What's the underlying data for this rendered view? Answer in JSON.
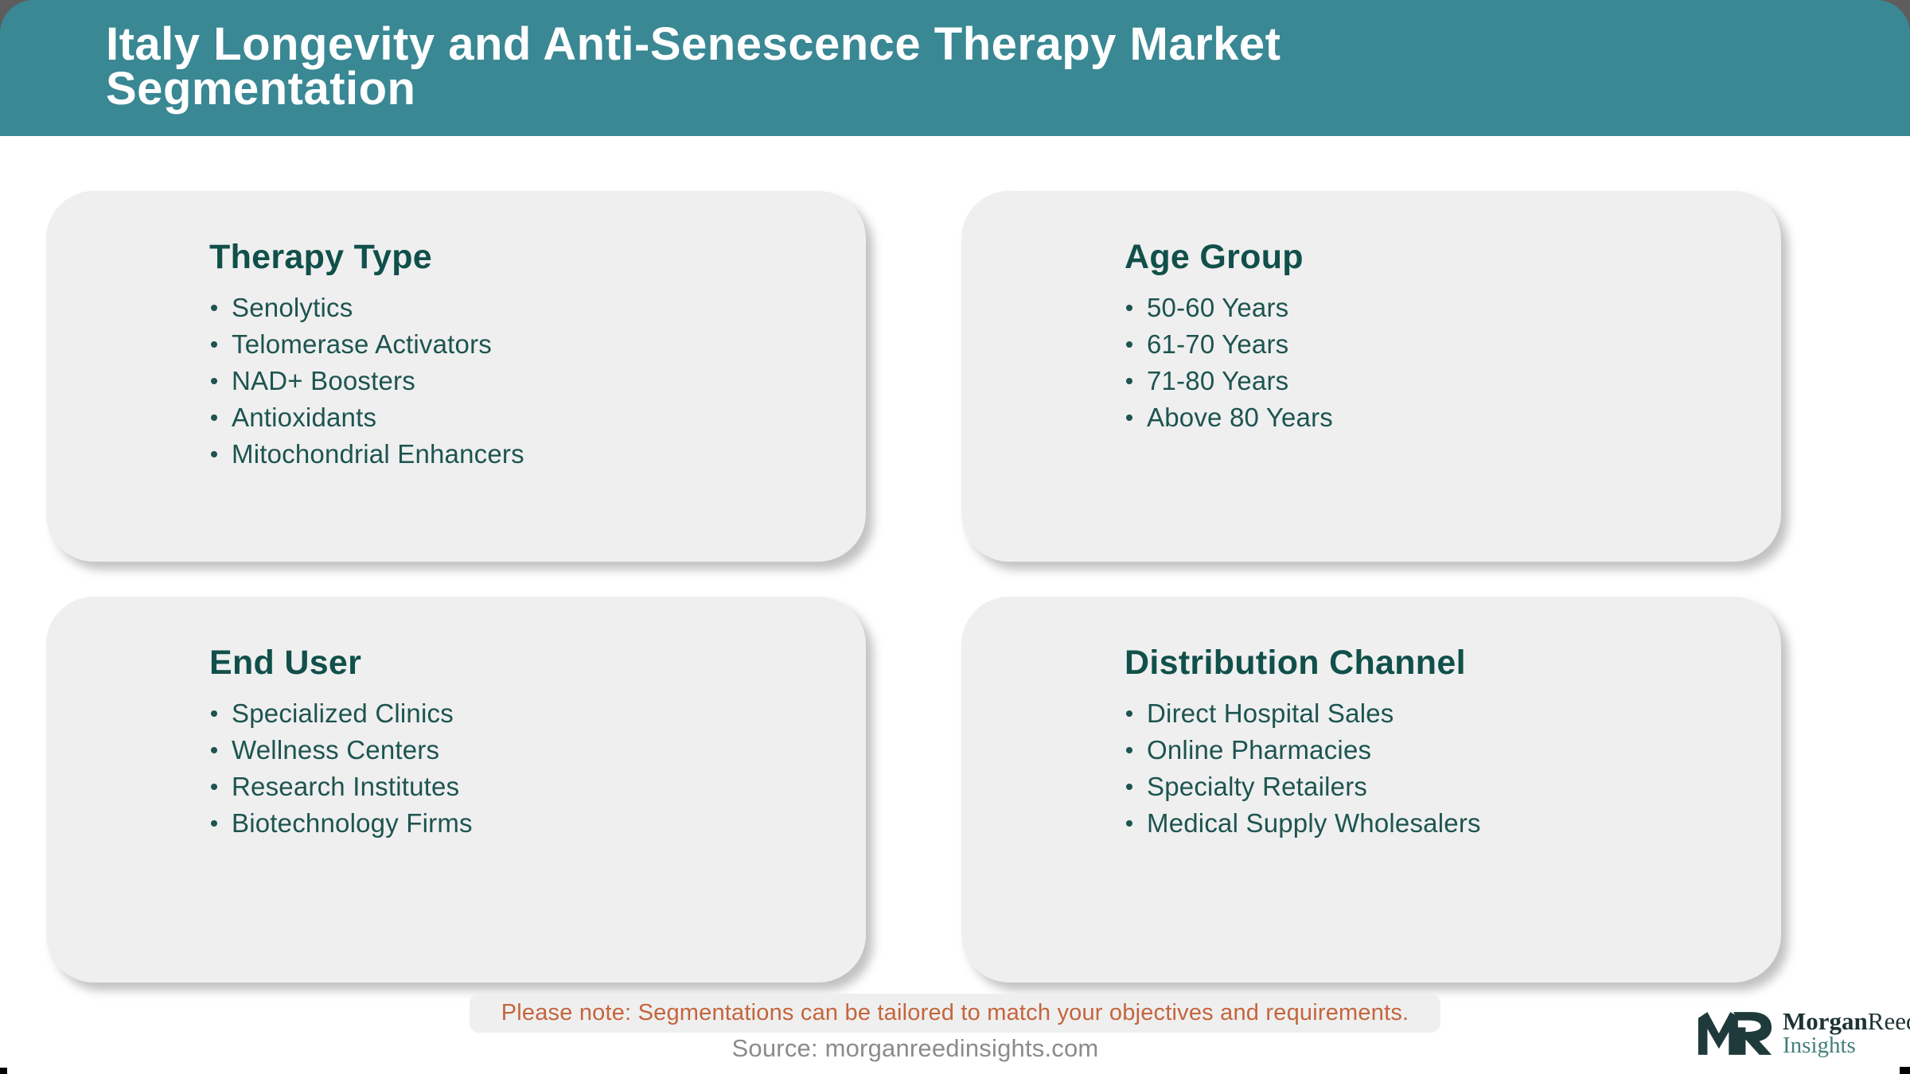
{
  "header": {
    "title_lines": [
      "Italy Longevity and Anti-Senescence Therapy Market",
      "Segmentation"
    ]
  },
  "cards": [
    {
      "title": "Therapy Type",
      "items": [
        "Senolytics",
        "Telomerase Activators",
        "NAD+ Boosters",
        "Antioxidants",
        "Mitochondrial Enhancers"
      ]
    },
    {
      "title": "Age Group",
      "items": [
        "50-60 Years",
        "61-70 Years",
        "71-80 Years",
        "Above 80 Years"
      ]
    },
    {
      "title": "End User",
      "items": [
        "Specialized Clinics",
        "Wellness Centers",
        "Research Institutes",
        "Biotechnology Firms"
      ]
    },
    {
      "title": "Distribution Channel",
      "items": [
        "Direct Hospital Sales",
        "Online Pharmacies",
        "Specialty Retailers",
        "Medical Supply Wholesalers"
      ]
    }
  ],
  "footer": {
    "note": "Please note: Segmentations can be tailored to match your objectives and requirements.",
    "source": "Source: morganreedinsights.com"
  },
  "logo": {
    "monogram": "MR",
    "name_bold": "Morgan",
    "name_regular": "Reed",
    "tagline": "Insights"
  },
  "colors": {
    "header_teal": "#398894",
    "header_backdrop_gray": "#5e5c5d",
    "card_background": "#efefef",
    "heading_text": "#11504a",
    "body_text": "#1d5450",
    "note_text": "#c4653c",
    "source_text": "#8b8b8b",
    "logo_dark": "#1e3333",
    "logo_teal": "#42807b"
  }
}
